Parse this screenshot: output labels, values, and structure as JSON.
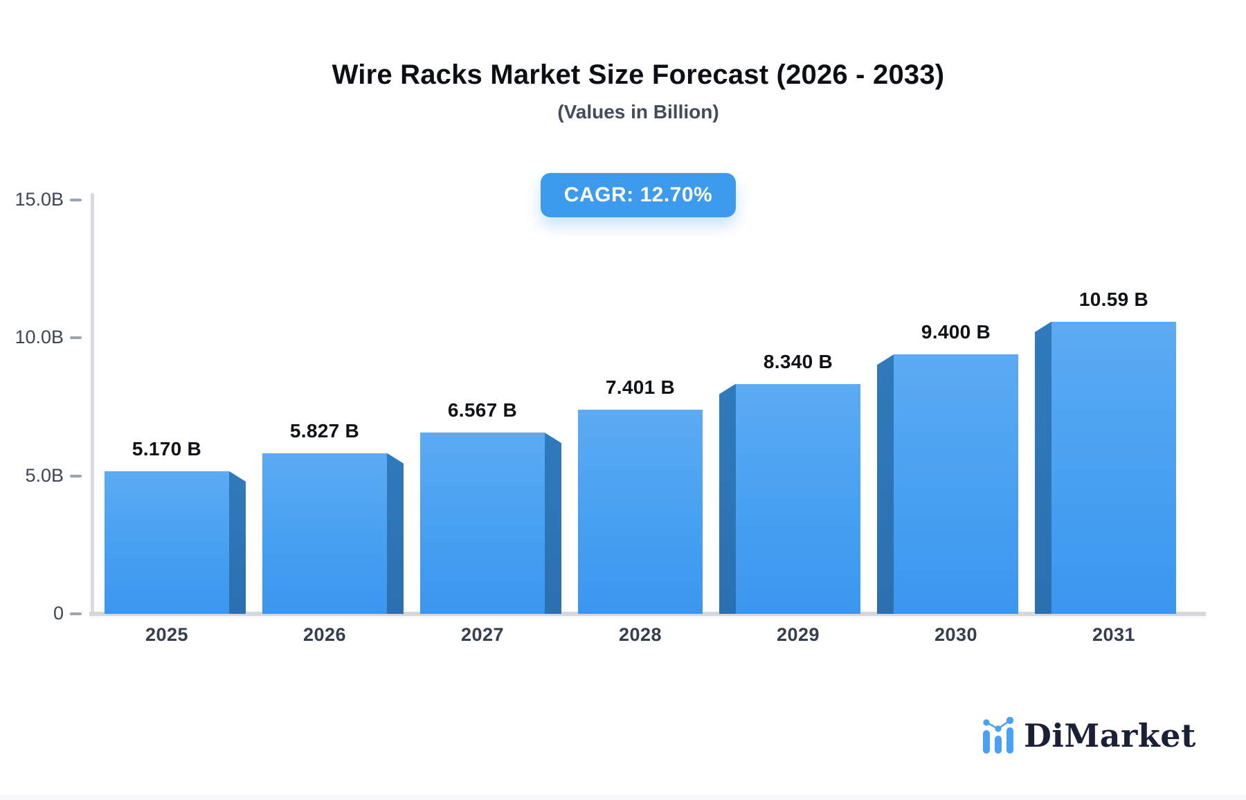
{
  "header": {
    "title": "Wire Racks Market Size Forecast (2026 - 2033)",
    "subtitle": "(Values in Billion)"
  },
  "badge": {
    "label": "CAGR: 12.70%",
    "bg": "#3d9bed",
    "text_color": "#ffffff"
  },
  "brand": {
    "name": "DiMarket",
    "icon": "bar-chart-logo-icon",
    "icon_color": "#4aa0f4",
    "text_color": "#1a2137"
  },
  "chart_data": {
    "type": "bar",
    "title": "Wire Racks Market Size Forecast (2026 - 2033)",
    "subtitle": "(Values in Billion)",
    "categories": [
      "2025",
      "2026",
      "2027",
      "2028",
      "2029",
      "2030",
      "2031"
    ],
    "values": [
      5.17,
      5.827,
      6.567,
      7.401,
      8.34,
      9.4,
      10.59
    ],
    "value_labels": [
      "5.170 B",
      "5.827 B",
      "6.567 B",
      "7.401 B",
      "8.340 B",
      "9.400 B",
      "10.59 B"
    ],
    "xlabel": "",
    "ylabel": "",
    "ylim": [
      0,
      15
    ],
    "yticks": {
      "values": [
        0,
        5,
        10,
        15
      ],
      "labels": [
        "0",
        "5.0B",
        "10.0B",
        "15.0B"
      ]
    },
    "grid": false,
    "legend": false,
    "style": "3d-extruded-bars",
    "bar_face_color": "#3f9df2",
    "bar_side_color": "#2d74b6",
    "axis_color": "#d6d9dd"
  }
}
